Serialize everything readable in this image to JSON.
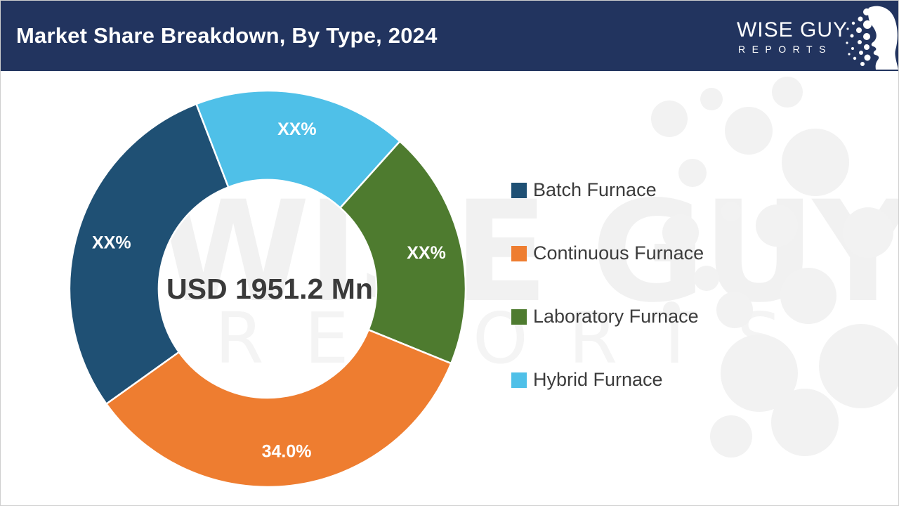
{
  "header": {
    "title": "Market Share Breakdown, By Type, 2024",
    "bg_color": "#22345f",
    "logo": {
      "line1": "WISE GUY",
      "line2": "REPORTS"
    }
  },
  "watermark": {
    "line1": "WISE GUY",
    "line2": "REPORTS"
  },
  "chart_data": {
    "type": "pie",
    "subtype": "donut",
    "title": "Market Share Breakdown, By Type, 2024",
    "center_label": "USD 1951.2 Mn",
    "units": "percent share of USD 1951.2 Mn",
    "start_angle_deg": -125.5,
    "legend_position": "right",
    "slices": [
      {
        "name": "Batch Furnace",
        "value": 29.0,
        "display_label": "XX%",
        "color": "#1f5074"
      },
      {
        "name": "Hybrid Furnace",
        "value": 17.5,
        "display_label": "XX%",
        "color": "#4fc0e8"
      },
      {
        "name": "Laboratory Furnace",
        "value": 19.5,
        "display_label": "XX%",
        "color": "#4e7b2f"
      },
      {
        "name": "Continuous Furnace",
        "value": 34.0,
        "display_label": "34.0%",
        "color": "#ee7d30"
      }
    ]
  }
}
